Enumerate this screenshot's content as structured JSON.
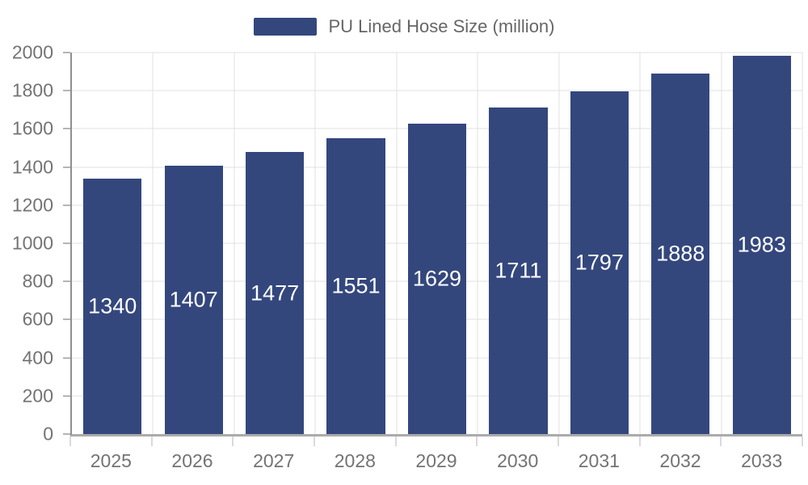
{
  "legend": {
    "label": "PU Lined Hose Size (million)"
  },
  "colors": {
    "bar": "#34477d",
    "bar_value_text": "#ffffff",
    "gridline": "#e0e0e0",
    "y_axis_line": "#8f8f8f",
    "x_axis_line": "#ababab",
    "tick": "#b5b5b5",
    "axis_label_text": "#737373",
    "legend_text": "#666666",
    "background": "#ffffff"
  },
  "chart_data": {
    "type": "bar",
    "title": "PU Lined Hose Size (million)",
    "categories": [
      "2025",
      "2026",
      "2027",
      "2028",
      "2029",
      "2030",
      "2031",
      "2032",
      "2033"
    ],
    "series": [
      {
        "name": "PU Lined Hose Size (million)",
        "values": [
          1340,
          1407,
          1477,
          1551,
          1629,
          1711,
          1797,
          1888,
          1983
        ]
      }
    ],
    "value_labels_shown": true,
    "value_label_position": "center-of-bar",
    "xlabel": "",
    "ylabel": "",
    "ylim": [
      0,
      2000
    ],
    "yticks": [
      0,
      200,
      400,
      600,
      800,
      1000,
      1200,
      1400,
      1600,
      1800,
      2000
    ],
    "grid": true,
    "legend_position": "top-center"
  }
}
